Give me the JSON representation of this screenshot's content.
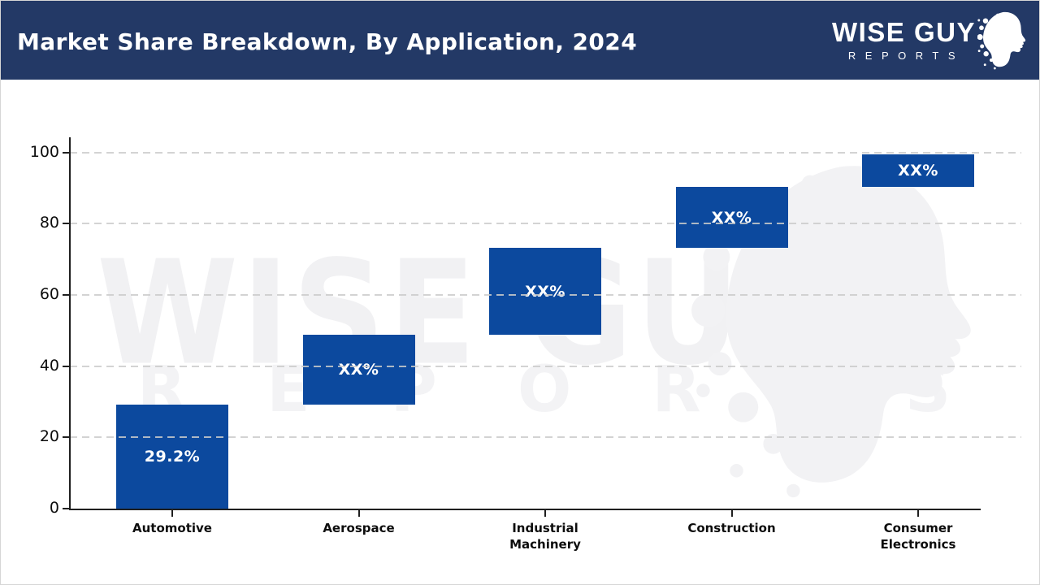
{
  "page": {
    "background": "#ffffff",
    "frame_border_color": "#d6d6d6"
  },
  "header": {
    "background_color": "#233966",
    "title": "Market Share Breakdown, By Application, 2024",
    "logo": {
      "primary": "WISE GUY",
      "secondary": "REPORTS",
      "face_icon": "dotted-head-profile"
    }
  },
  "watermark": {
    "primary": "WISE GUY",
    "secondary": "R E P O R T S",
    "face_icon": "dotted-head-profile",
    "color": "#f1f1f3"
  },
  "chart_data": {
    "type": "bar",
    "subtype": "floating-waterfall",
    "title": "Market Share Breakdown, By Application, 2024",
    "categories": [
      "Automotive",
      "Aerospace",
      "Industrial Machinery",
      "Construction",
      "Consumer Electronics"
    ],
    "category_lines": [
      [
        "Automotive"
      ],
      [
        "Aerospace"
      ],
      [
        "Industrial",
        "Machinery"
      ],
      [
        "Construction"
      ],
      [
        "Consumer",
        "Electronics"
      ]
    ],
    "segments": [
      {
        "category": "Automotive",
        "start": 0,
        "end": 29.2,
        "label": "29.2%"
      },
      {
        "category": "Aerospace",
        "start": 29.2,
        "end": 48.8,
        "label": "XX%"
      },
      {
        "category": "Industrial Machinery",
        "start": 48.8,
        "end": 73.1,
        "label": "XX%"
      },
      {
        "category": "Construction",
        "start": 73.1,
        "end": 90.2,
        "label": "XX%"
      },
      {
        "category": "Consumer Electronics",
        "start": 90.2,
        "end": 99.4,
        "label": "XX%"
      }
    ],
    "xlabel": "",
    "ylabel": "",
    "ylim": [
      0,
      105
    ],
    "yticks": [
      0,
      20,
      40,
      60,
      80,
      100
    ],
    "grid": "dashed-horizontal",
    "grid_color": "#d9d9d9",
    "legend": "none",
    "bar_color": "#0c499e",
    "bar_label_color": "#ffffff",
    "axis_color": "#1f1f1f"
  }
}
